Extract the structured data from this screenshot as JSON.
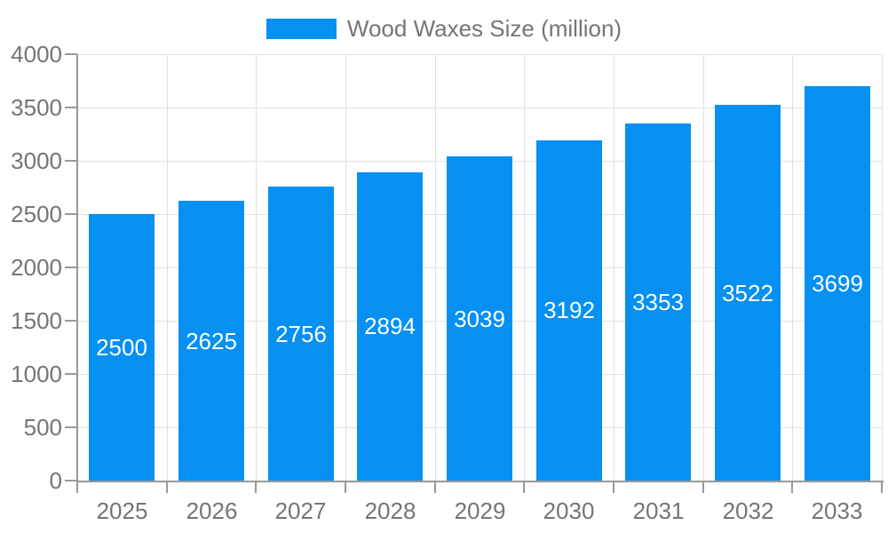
{
  "chart_data": {
    "type": "bar",
    "title": "",
    "legend": {
      "label": "Wood Waxes Size (million)"
    },
    "categories": [
      "2025",
      "2026",
      "2027",
      "2028",
      "2029",
      "2030",
      "2031",
      "2032",
      "2033"
    ],
    "series": [
      {
        "name": "Wood Waxes Size (million)",
        "values": [
          2500,
          2625,
          2756,
          2894,
          3039,
          3192,
          3353,
          3522,
          3699
        ]
      }
    ],
    "xlabel": "",
    "ylabel": "",
    "ylim": [
      0,
      4000
    ],
    "ytick_step": 500,
    "grid_on": true,
    "legend_position": "top-center",
    "bar_value_labels_inside": true,
    "colors": {
      "bar": "#0590f2",
      "axis": "#999999",
      "grid": "#e0e0e0",
      "text": "#757575",
      "bar_label_text": "#ffffff",
      "background": "#ffffff"
    }
  }
}
